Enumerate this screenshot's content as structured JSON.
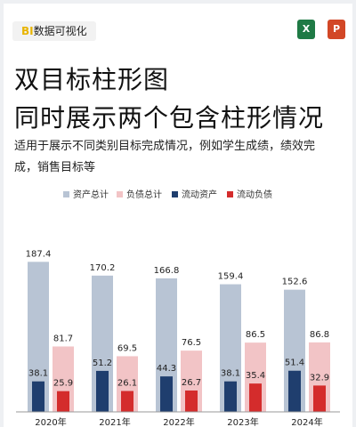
{
  "header": {
    "tag_prefix": "BI",
    "tag_text": "数据可视化",
    "excel_icon": "excel-icon",
    "excel_glyph": "X",
    "ppt_icon": "powerpoint-icon",
    "ppt_glyph": "P"
  },
  "title_line1": "双目标柱形图",
  "title_line2": "同时展示两个包含柱形情况",
  "description": "适用于展示不同类别目标完成情况，例如学生成绩，绩效完成，销售目标等",
  "chart_data": {
    "type": "bar",
    "categories": [
      "2020年",
      "2021年",
      "2022年",
      "2023年",
      "2024年"
    ],
    "series": [
      {
        "name": "资产总计",
        "color": "#b8c4d4",
        "values": [
          187.4,
          170.2,
          166.8,
          159.4,
          152.6
        ]
      },
      {
        "name": "负债总计",
        "color": "#f2c4c6",
        "values": [
          81.7,
          69.5,
          76.5,
          86.5,
          86.8
        ]
      },
      {
        "name": "流动资产",
        "color": "#1f3e6e",
        "values": [
          38.1,
          51.2,
          44.3,
          38.1,
          51.4
        ]
      },
      {
        "name": "流动负债",
        "color": "#d42c2c",
        "values": [
          25.9,
          26.1,
          26.7,
          35.4,
          32.9
        ]
      }
    ],
    "legend_position": "top-center",
    "grid": false
  }
}
